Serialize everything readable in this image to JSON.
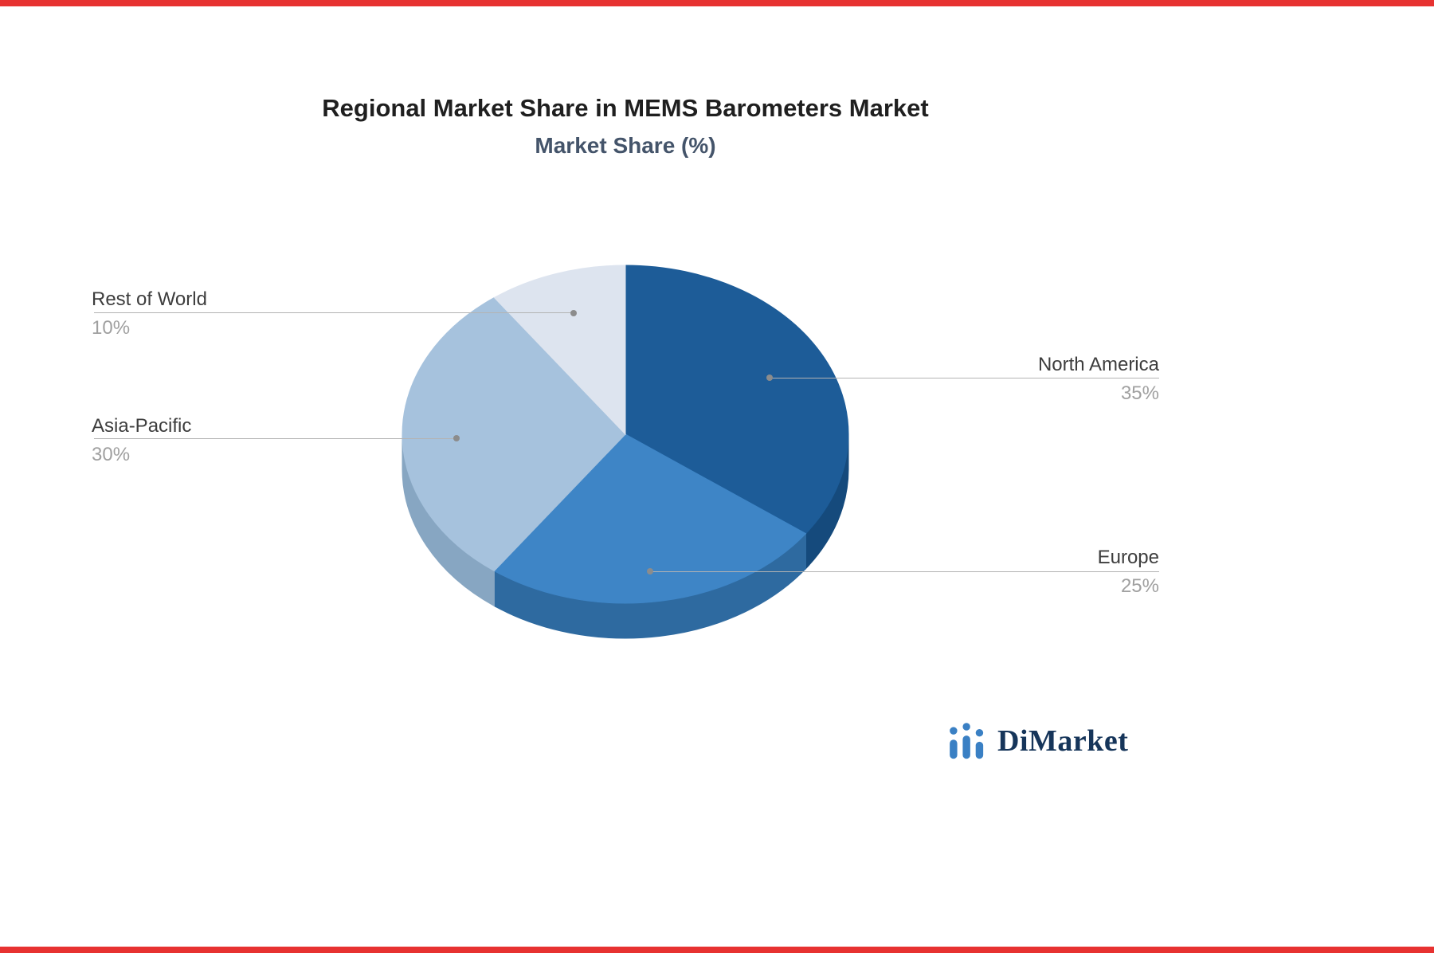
{
  "chart_data": {
    "type": "pie",
    "style": "3d",
    "title": "Regional Market Share in MEMS Barometers Market",
    "subtitle": "Market Share (%)",
    "unit": "%",
    "legend_position": "none",
    "labels": "callout-leader-lines",
    "start_angle_deg": -90,
    "direction": "clockwise",
    "categories": [
      "North America",
      "Europe",
      "Asia-Pacific",
      "Rest of World"
    ],
    "values": [
      35,
      25,
      30,
      10
    ],
    "value_labels": [
      "35%",
      "25%",
      "30%",
      "10%"
    ],
    "colors": [
      "#1d5c98",
      "#3e85c6",
      "#a6c2dd",
      "#dde4ef"
    ],
    "side_colors": [
      "#154a7c",
      "#2e6aa0",
      "#87a6c2",
      "#c2cbd9"
    ]
  },
  "branding": {
    "name": "DiMarket",
    "icon": "bar-chart-logo-icon",
    "icon_color": "#3a80c4",
    "text_color": "#16355a"
  },
  "decor": {
    "accent_color": "#e73231",
    "line_color": "#b3b3b3",
    "dot_color": "#8c8c8c"
  }
}
